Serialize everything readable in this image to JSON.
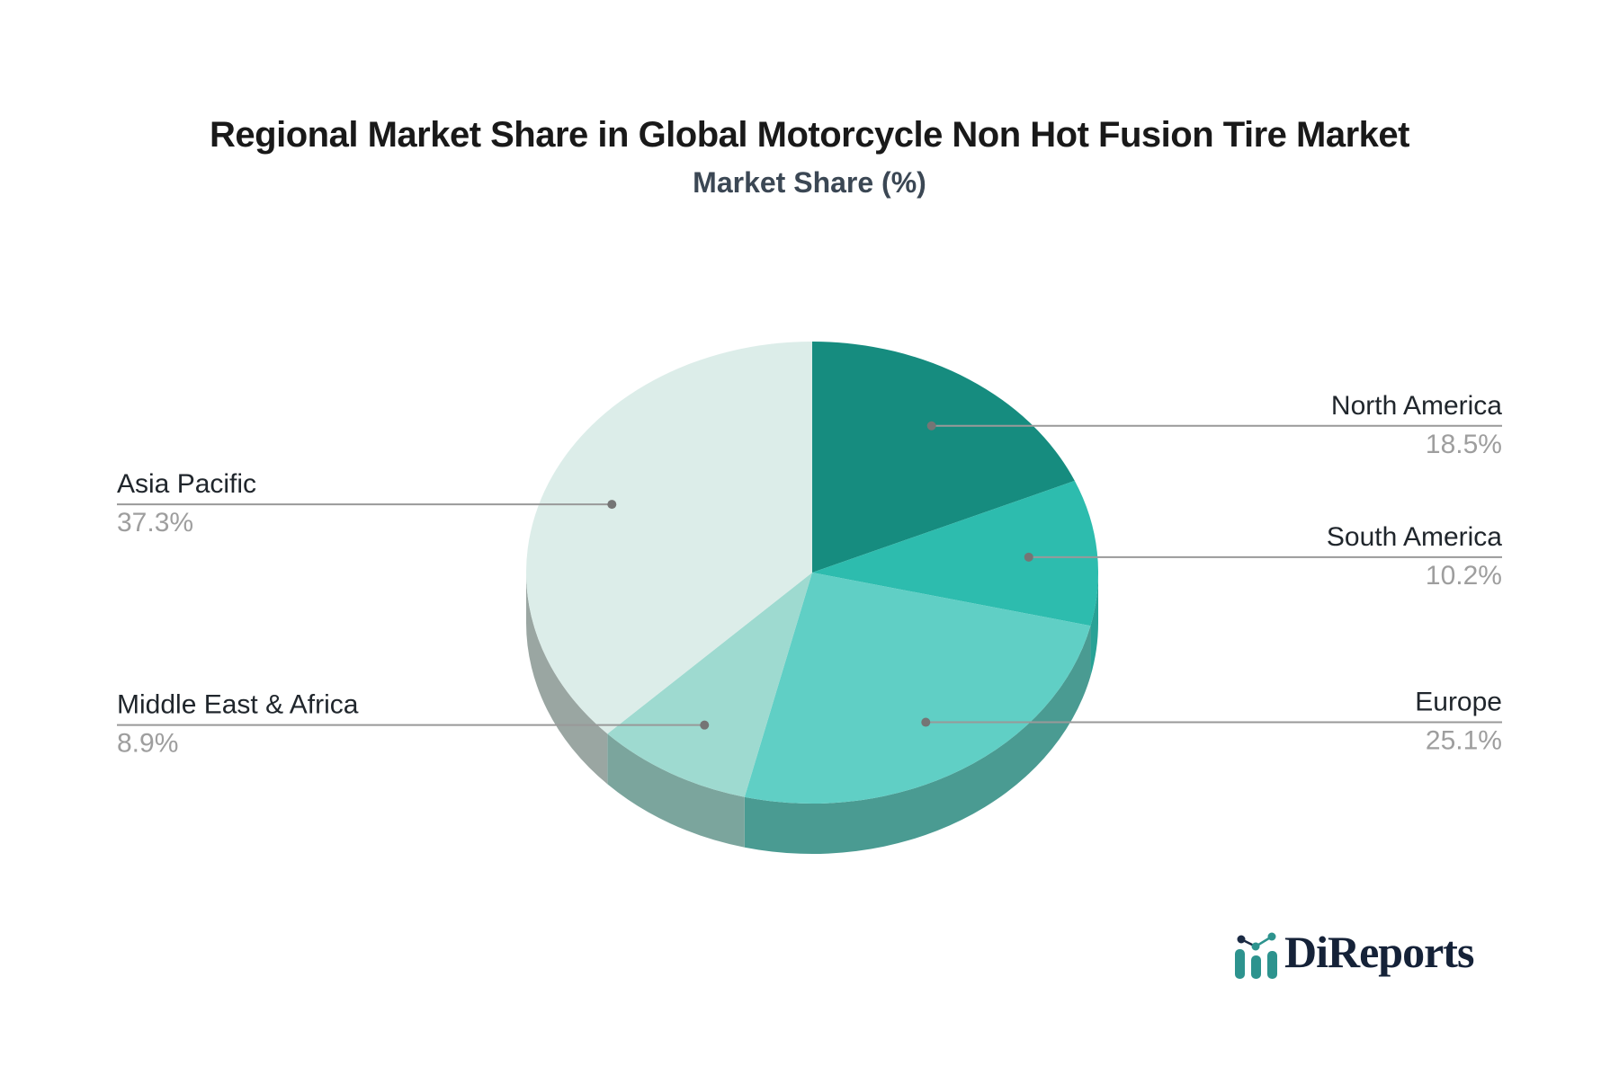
{
  "chart_data": {
    "type": "pie",
    "title": "Regional Market Share in Global Motorcycle Non Hot Fusion Tire Market",
    "subtitle": "Market Share (%)",
    "unit": "%",
    "start_angle_deg": 0,
    "direction": "clockwise",
    "style_3d": true,
    "legend_position": "connector-labels",
    "slices": [
      {
        "label": "North America",
        "value": 18.5,
        "display": "18.5%",
        "color": "#168c7f",
        "wall_color": "#28a296"
      },
      {
        "label": "South America",
        "value": 10.2,
        "display": "10.2%",
        "color": "#2dbcae",
        "wall_color": "#28a296"
      },
      {
        "label": "Europe",
        "value": 25.1,
        "display": "25.1%",
        "color": "#60cfc5",
        "wall_color": "#4a9b92"
      },
      {
        "label": "Middle East & Africa",
        "value": 8.9,
        "display": "8.9%",
        "color": "#9edad0",
        "wall_color": "#7ba59d"
      },
      {
        "label": "Asia Pacific",
        "value": 37.3,
        "display": "37.3%",
        "color": "#dcede9",
        "wall_color": "#9aa6a2"
      }
    ],
    "colors": {
      "title": "#191919",
      "subtitle": "#3b4754",
      "label_text": "#20262c",
      "value_text": "#9e9e9e",
      "leader_line": "#999999",
      "leader_dot": "#757575"
    }
  },
  "branding": {
    "logo_text": "DiReports",
    "logo_colors": {
      "bars": "#2d938e",
      "dot_dark": "#1b2a44",
      "text": "#152238"
    }
  }
}
